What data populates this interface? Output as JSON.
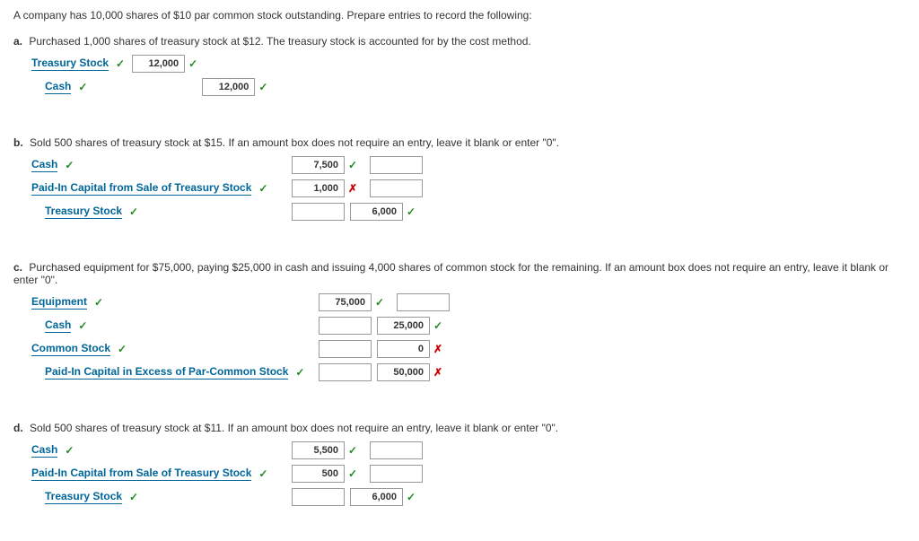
{
  "intro": "A company has 10,000 shares of $10 par common stock outstanding. Prepare entries to record the following:",
  "sections": {
    "a": {
      "letter": "a.",
      "text": "Purchased 1,000 shares of treasury stock at $12. The treasury stock is accounted for by the cost method.",
      "lines": [
        {
          "account": "Treasury Stock",
          "label_width": 95,
          "indent": 0,
          "debit": "12,000",
          "debit_mark": "check",
          "credit": null,
          "credit_mark": null
        },
        {
          "account": "Cash",
          "label_width": 35,
          "indent": 1,
          "debit": null,
          "debit_mark": null,
          "credit": "12,000",
          "credit_mark": "check",
          "debit_box_hidden": true
        }
      ]
    },
    "b": {
      "letter": "b.",
      "text": "Sold 500 shares of treasury stock at $15. If an amount box does not require an entry, leave it blank or enter \"0\".",
      "label_col_width": 290,
      "lines": [
        {
          "account": "Cash",
          "indent": 0,
          "debit": "7,500",
          "debit_mark": "check",
          "credit": "",
          "credit_mark": null
        },
        {
          "account": "Paid-In Capital from Sale of Treasury Stock",
          "indent": 0,
          "debit": "1,000",
          "debit_mark": "cross",
          "credit": "",
          "credit_mark": null
        },
        {
          "account": "Treasury Stock",
          "indent": 1,
          "debit": "",
          "debit_mark": null,
          "credit": "6,000",
          "credit_mark": "check"
        }
      ]
    },
    "c": {
      "letter": "c.",
      "text": "Purchased equipment for $75,000, paying $25,000 in cash and issuing 4,000 shares of common stock for the remaining. If an amount box does not require an entry, leave it blank or enter \"0\".",
      "label_col_width": 320,
      "lines": [
        {
          "account": "Equipment",
          "indent": 0,
          "debit": "75,000",
          "debit_mark": "check",
          "credit": "",
          "credit_mark": null
        },
        {
          "account": "Cash",
          "indent": 1,
          "debit": "",
          "debit_mark": null,
          "credit": "25,000",
          "credit_mark": "check"
        },
        {
          "account": "Common Stock",
          "indent": 0,
          "debit": "",
          "debit_mark": null,
          "credit": "0",
          "credit_mark": "cross"
        },
        {
          "account": "Paid-In Capital in Excess of Par-Common Stock",
          "indent": 1,
          "debit": "",
          "debit_mark": null,
          "credit": "50,000",
          "credit_mark": "cross"
        }
      ]
    },
    "d": {
      "letter": "d.",
      "text": "Sold 500 shares of treasury stock at $11. If an amount box does not require an entry, leave it blank or enter \"0\".",
      "label_col_width": 290,
      "lines": [
        {
          "account": "Cash",
          "indent": 0,
          "debit": "5,500",
          "debit_mark": "check",
          "credit": "",
          "credit_mark": null
        },
        {
          "account": "Paid-In Capital from Sale of Treasury Stock",
          "indent": 0,
          "debit": "500",
          "debit_mark": "check",
          "credit": "",
          "credit_mark": null
        },
        {
          "account": "Treasury Stock",
          "indent": 1,
          "debit": "",
          "debit_mark": null,
          "credit": "6,000",
          "credit_mark": "check"
        }
      ]
    }
  },
  "marks": {
    "check": "✓",
    "cross": "✗"
  }
}
